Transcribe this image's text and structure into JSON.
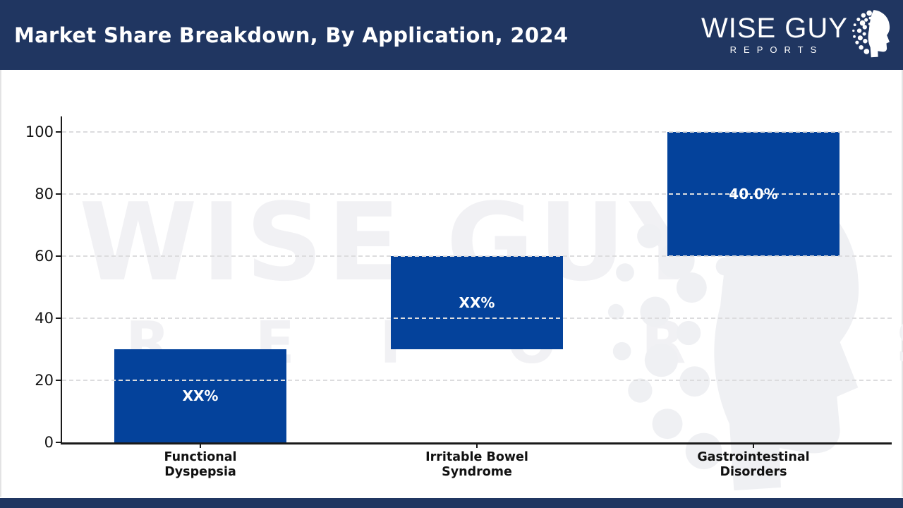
{
  "header": {
    "title": "Market Share Breakdown, By Application, 2024"
  },
  "logo": {
    "name_top": "WISE GUY",
    "name_bottom": "REPORTS"
  },
  "watermark": {
    "text_top": "WISE GUY",
    "text_bottom": "R E P O R T S"
  },
  "colors": {
    "header_bg": "#203661",
    "footer_bg": "#203661",
    "bar_fill": "#04429b",
    "grid_line": "#dcdcde",
    "axis_line": "#1a1a1a",
    "watermark_text": "#f1f1f4",
    "title_text": "#ffffff",
    "bar_label_text": "#ffffff"
  },
  "chart_data": {
    "type": "bar",
    "subtype": "floating-segment waterfall",
    "title": "Market Share Breakdown, By Application, 2024",
    "categories": [
      "Functional Dyspepsia",
      "Irritable Bowel Syndrome",
      "Gastrointestinal Disorders"
    ],
    "category_label_lines": [
      [
        "Functional",
        "Dyspepsia"
      ],
      [
        "Irritable Bowel",
        "Syndrome"
      ],
      [
        "Gastrointestinal",
        "Disorders"
      ]
    ],
    "segments": [
      {
        "category": "Functional Dyspepsia",
        "start": 0,
        "end": 30,
        "label": "XX%"
      },
      {
        "category": "Irritable Bowel Syndrome",
        "start": 30,
        "end": 60,
        "label": "XX%"
      },
      {
        "category": "Gastrointestinal Disorders",
        "start": 60,
        "end": 100,
        "label": "40.0%"
      }
    ],
    "yticks": [
      0,
      20,
      40,
      60,
      80,
      100
    ],
    "ylim": [
      0,
      105
    ],
    "xlabel": "",
    "ylabel": "",
    "grid": "horizontal dashed",
    "legend": "none",
    "bar_value_labels_visible": true
  }
}
